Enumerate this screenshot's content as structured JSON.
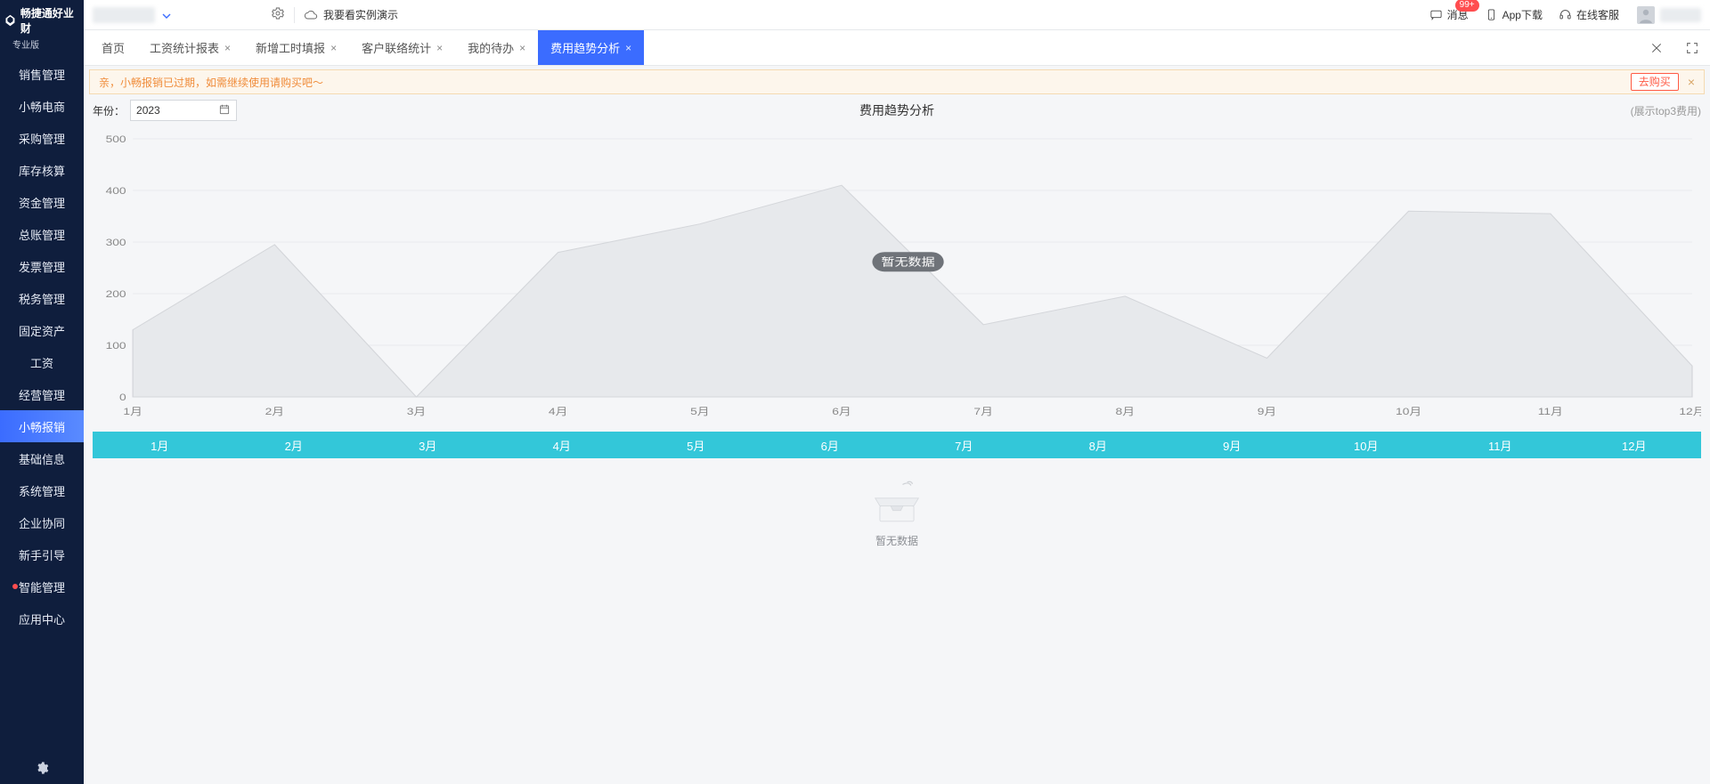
{
  "brand": {
    "name": "畅捷通好业财",
    "edition": "专业版"
  },
  "sidebar": {
    "items": [
      {
        "label": "销售管理",
        "active": false,
        "dot": false
      },
      {
        "label": "小畅电商",
        "active": false,
        "dot": false
      },
      {
        "label": "采购管理",
        "active": false,
        "dot": false
      },
      {
        "label": "库存核算",
        "active": false,
        "dot": false
      },
      {
        "label": "资金管理",
        "active": false,
        "dot": false
      },
      {
        "label": "总账管理",
        "active": false,
        "dot": false
      },
      {
        "label": "发票管理",
        "active": false,
        "dot": false
      },
      {
        "label": "税务管理",
        "active": false,
        "dot": false
      },
      {
        "label": "固定资产",
        "active": false,
        "dot": false
      },
      {
        "label": "工资",
        "active": false,
        "dot": false
      },
      {
        "label": "经营管理",
        "active": false,
        "dot": false
      },
      {
        "label": "小畅报销",
        "active": true,
        "dot": false
      },
      {
        "label": "基础信息",
        "active": false,
        "dot": false
      },
      {
        "label": "系统管理",
        "active": false,
        "dot": false
      },
      {
        "label": "企业协同",
        "active": false,
        "dot": false
      },
      {
        "label": "新手引导",
        "active": false,
        "dot": false
      },
      {
        "label": "智能管理",
        "active": false,
        "dot": true
      },
      {
        "label": "应用中心",
        "active": false,
        "dot": false
      }
    ]
  },
  "topbar": {
    "demo_label": "我要看实例演示",
    "message_label": "消息",
    "message_badge": "99+",
    "app_label": "App下载",
    "service_label": "在线客服"
  },
  "tabs": [
    {
      "label": "首页",
      "closable": false,
      "active": false
    },
    {
      "label": "工资统计报表",
      "closable": true,
      "active": false
    },
    {
      "label": "新增工时填报",
      "closable": true,
      "active": false
    },
    {
      "label": "客户联络统计",
      "closable": true,
      "active": false
    },
    {
      "label": "我的待办",
      "closable": true,
      "active": false
    },
    {
      "label": "费用趋势分析",
      "closable": true,
      "active": true
    }
  ],
  "notice": {
    "text": "亲，小畅报销已过期，如需继续使用请购买吧～",
    "buy_label": "去购买"
  },
  "filter": {
    "year_label": "年份：",
    "year_value": "2023",
    "chart_title": "费用趋势分析",
    "right_hint": "(展示top3费用)"
  },
  "chart": {
    "type": "area",
    "categories": [
      "1月",
      "2月",
      "3月",
      "4月",
      "5月",
      "6月",
      "7月",
      "8月",
      "9月",
      "10月",
      "11月",
      "12月"
    ],
    "values": [
      130,
      295,
      0,
      280,
      335,
      410,
      140,
      195,
      75,
      360,
      355,
      60
    ],
    "ylim": [
      0,
      500
    ],
    "ytick_step": 100,
    "area_fill_color": "#e7e9ec",
    "area_stroke_color": "#d4d6da",
    "grid_color": "#e9ebee",
    "axis_text_color": "#888888",
    "background_color": "#ffffff",
    "tooltip": {
      "text": "暂无数据",
      "bg_color": "#6f7379"
    }
  },
  "month_bar": {
    "months": [
      "1月",
      "2月",
      "3月",
      "4月",
      "5月",
      "6月",
      "7月",
      "8月",
      "9月",
      "10月",
      "11月",
      "12月"
    ],
    "bg_color": "#33c7d9",
    "text_color": "#ffffff"
  },
  "nodata": {
    "text": "暂无数据"
  }
}
